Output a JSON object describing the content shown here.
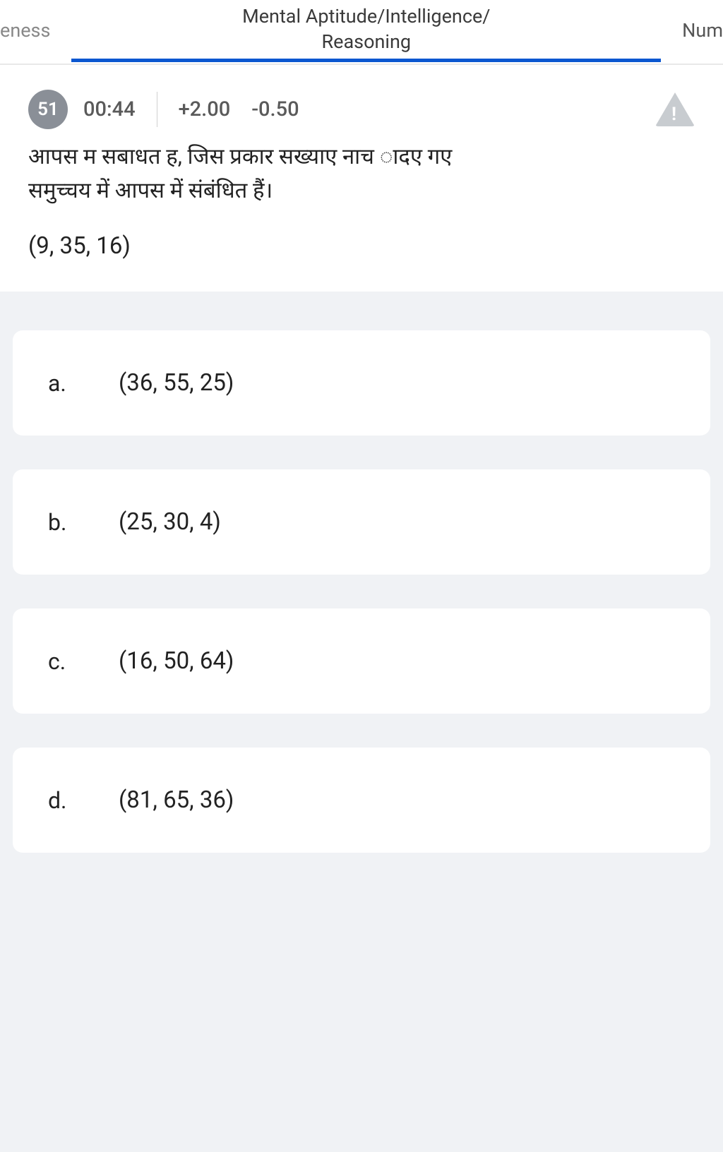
{
  "tabs": {
    "left": "eness",
    "center_line1": "Mental Aptitude/Intelligence/",
    "center_line2": "Reasoning",
    "right": "Num"
  },
  "meta": {
    "question_number": "51",
    "timer": "00:44",
    "positive_marks": "+2.00",
    "negative_marks": "-0.50"
  },
  "question": {
    "text_line1": "आपस म सबाधत ह, जिस प्रकार सख्याए नाच ादए गए",
    "text_line2": "समुच्चय में आपस में संबंधित हैं।",
    "given_set": "(9, 35, 16)"
  },
  "options": [
    {
      "letter": "a.",
      "value": "(36, 55, 25)"
    },
    {
      "letter": "b.",
      "value": "(25, 30, 4)"
    },
    {
      "letter": "c.",
      "value": "(16, 50, 64)"
    },
    {
      "letter": "d.",
      "value": "(81, 65, 36)"
    }
  ],
  "colors": {
    "background": "#f0f2f5",
    "card_background": "#ffffff",
    "active_tab_border": "#0b57d0",
    "badge_background": "#8a8f97",
    "text_primary": "#222222",
    "text_secondary": "#5a5a5a",
    "warning_icon": "#c8ccd0"
  }
}
